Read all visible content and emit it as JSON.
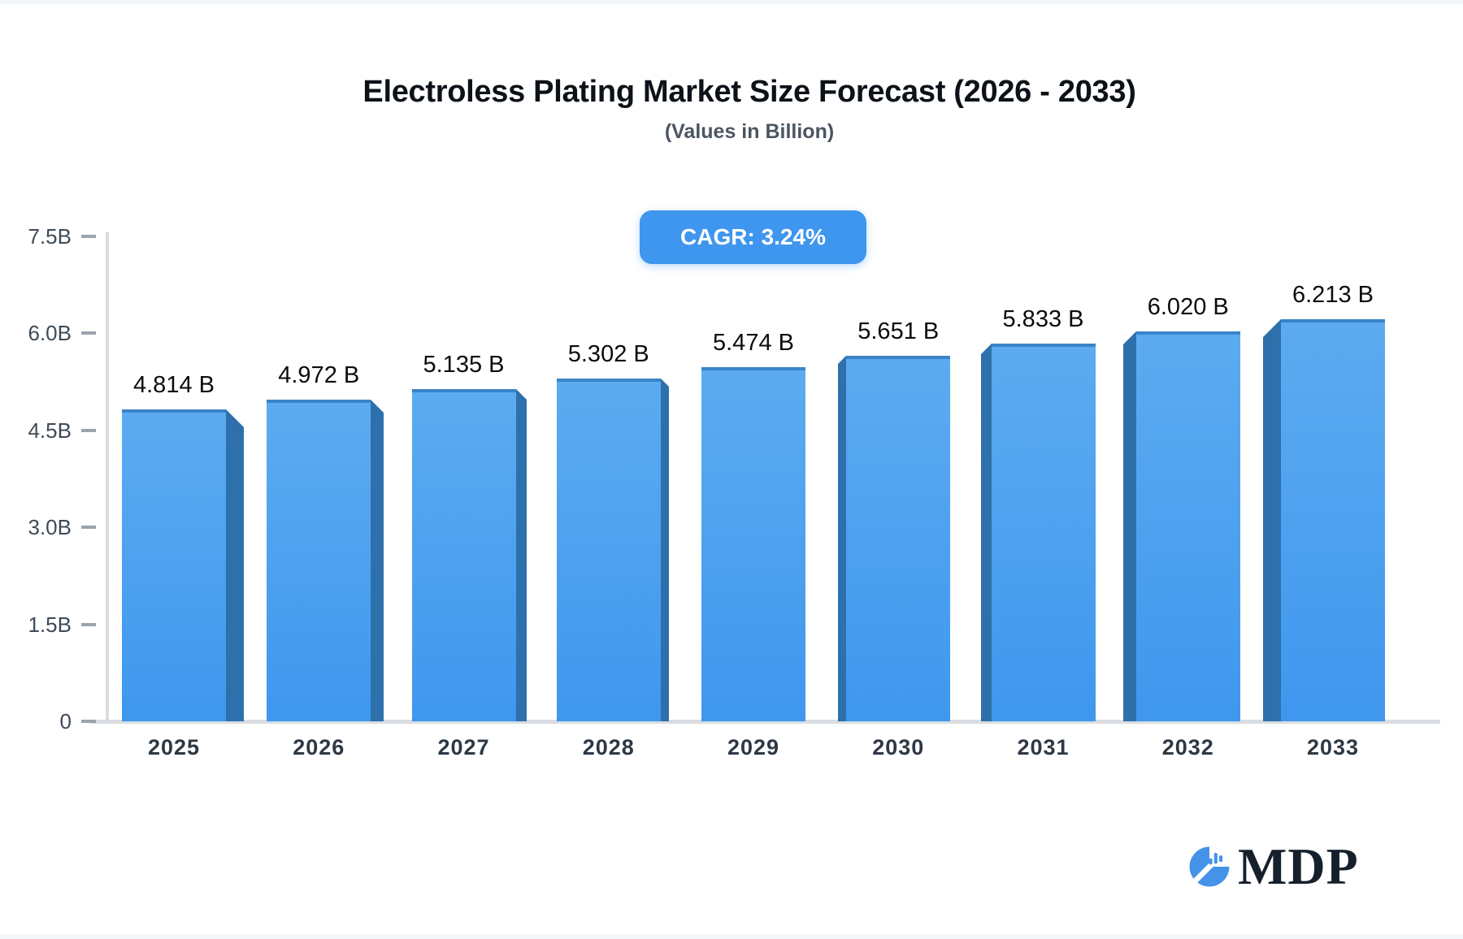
{
  "header": {
    "title": "Electroless Plating Market Size Forecast (2026 - 2033)",
    "subtitle": "(Values in Billion)"
  },
  "badge": {
    "label": "CAGR: 3.24%",
    "bg_color": "#3e96ee",
    "text_color": "#ffffff"
  },
  "chart_data": {
    "type": "bar",
    "title": "Electroless Plating Market Size Forecast (2026 - 2033)",
    "subtitle": "(Values in Billion)",
    "categories": [
      "2025",
      "2026",
      "2027",
      "2028",
      "2029",
      "2030",
      "2031",
      "2032",
      "2033"
    ],
    "values": [
      4.814,
      4.972,
      5.135,
      5.302,
      5.474,
      5.651,
      5.833,
      6.02,
      6.213
    ],
    "value_labels": [
      "4.814 B",
      "4.972 B",
      "5.135 B",
      "5.302 B",
      "5.474 B",
      "5.651 B",
      "5.833 B",
      "6.020 B",
      "6.213 B"
    ],
    "xlabel": "",
    "ylabel": "",
    "ylim": [
      0,
      7.5
    ],
    "yticks": {
      "values": [
        0,
        1.5,
        3.0,
        4.5,
        6.0,
        7.5
      ],
      "labels": [
        "0",
        "1.5B",
        "3.0B",
        "4.5B",
        "6.0B",
        "7.5B"
      ]
    },
    "grid": false,
    "legend": false,
    "style": "3d-perspective-center-vanishing",
    "colors": {
      "bar_face_top": "#5cabf0",
      "bar_face_bottom": "#3f97ee",
      "bar_top_edge": "#3a84c8",
      "bar_side": "#2d70ab",
      "axis_line": "#d9dde1",
      "tick_dash": "#9ba3ac",
      "tick_label": "#3e4a57",
      "x_label": "#2e3844",
      "value_label": "#0a0d10"
    }
  },
  "logo": {
    "text": "MDP",
    "icon": "pie-bar-chart-icon",
    "icon_color": "#4493e8",
    "text_color": "#16202c"
  }
}
